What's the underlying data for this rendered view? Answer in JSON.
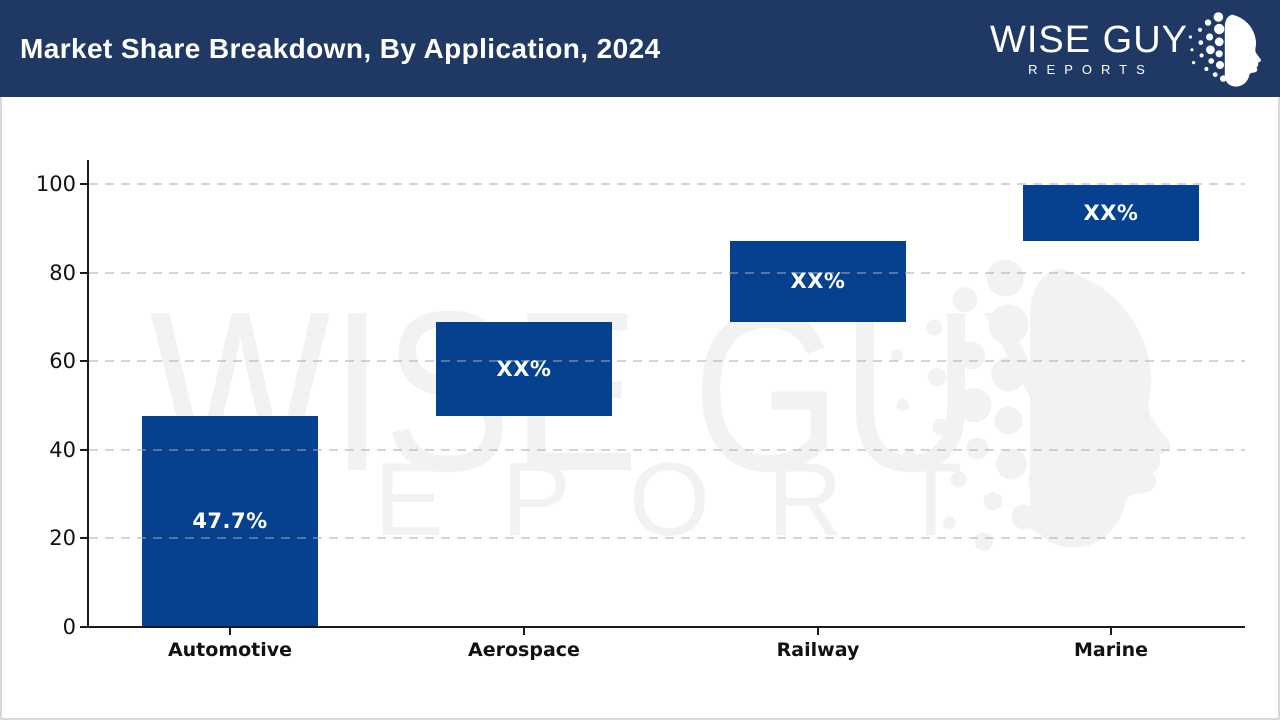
{
  "header": {
    "title": "Market Share Breakdown, By Application, 2024",
    "logo": {
      "line1": "WISE GUY",
      "line2": "REPORTS"
    }
  },
  "watermark": {
    "line1": "WISE GUY",
    "line2": "REPORTS"
  },
  "chart_data": {
    "type": "bar",
    "subtype": "waterfall-segments",
    "title": "Market Share Breakdown, By Application, 2024",
    "categories": [
      "Automotive",
      "Aerospace",
      "Railway",
      "Marine"
    ],
    "segments": [
      {
        "category": "Automotive",
        "label": "47.7%",
        "start": 0,
        "end": 47.7
      },
      {
        "category": "Aerospace",
        "label": "XX%",
        "start": 47.7,
        "end": 68.8
      },
      {
        "category": "Railway",
        "label": "XX%",
        "start": 68.8,
        "end": 87.3
      },
      {
        "category": "Marine",
        "label": "XX%",
        "start": 87.3,
        "end": 99.8
      }
    ],
    "yticks": [
      0,
      20,
      40,
      60,
      80,
      100
    ],
    "ylim": [
      0,
      105
    ],
    "xlabel": "",
    "ylabel": "",
    "grid": "horizontal-dashed",
    "legend": "none"
  },
  "colors": {
    "header_bg": "#1f3864",
    "bar": "#05418f",
    "bar_label": "#ffffff",
    "axis": "#1a1a1a",
    "grid": "#d9d9d9",
    "watermark": "#f2f2f2",
    "page_border": "#d9d9d9",
    "title_text": "#ffffff"
  }
}
